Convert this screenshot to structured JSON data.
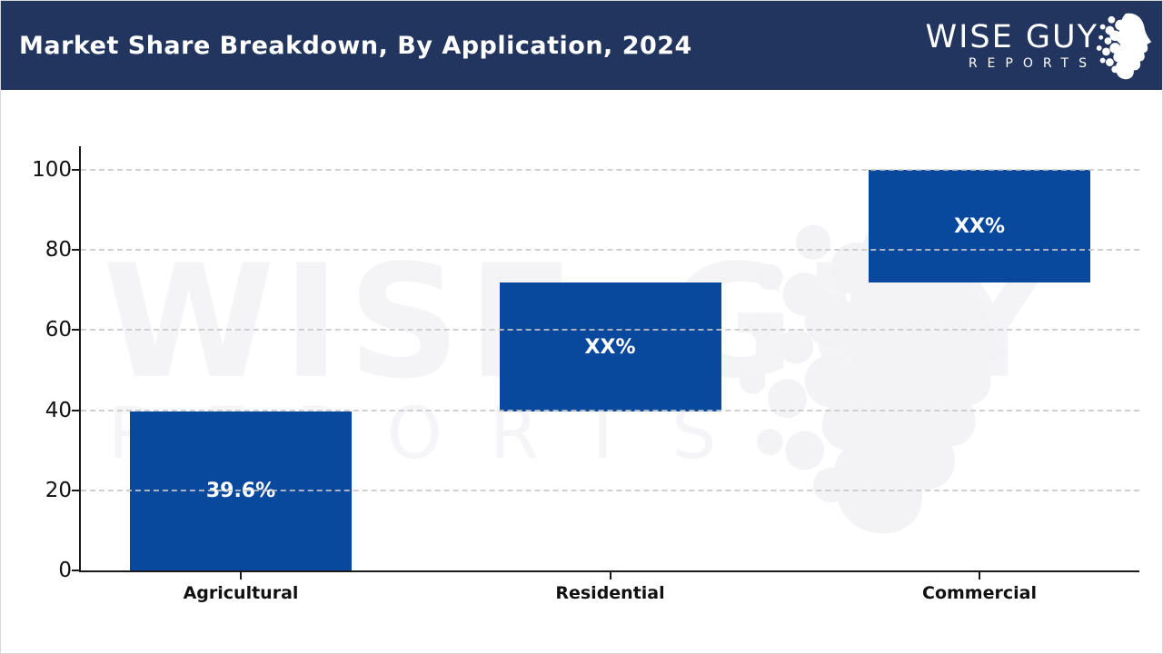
{
  "header": {
    "title": "Market Share Breakdown, By Application, 2024",
    "bg_color": "#21355E",
    "logo": {
      "line1": "WISE GUY",
      "line2": "REPORTS"
    }
  },
  "watermark": {
    "line1": "WISE GUY",
    "line2": "REPORTS"
  },
  "chart_data": {
    "type": "bar",
    "subtype": "waterfall",
    "title": "Market Share Breakdown, By Application, 2024",
    "categories": [
      "Agricultural",
      "Residential",
      "Commercial"
    ],
    "bars": [
      {
        "category": "Agricultural",
        "start": 0,
        "end": 39.6,
        "label": "39.6%"
      },
      {
        "category": "Residential",
        "start": 39.6,
        "end": 71.8,
        "label": "XX%"
      },
      {
        "category": "Commercial",
        "start": 71.8,
        "end": 100,
        "label": "XX%"
      }
    ],
    "xlabel": "",
    "ylabel": "",
    "ylim": [
      0,
      106
    ],
    "yticks": [
      0,
      20,
      40,
      60,
      80,
      100
    ],
    "grid": "horizontal-dashed",
    "legend": "none",
    "bar_color": "#08489D",
    "bar_label_color": "#FFFFFF",
    "axis_color": "#1A1A1A",
    "grid_color": "#C8C8C8",
    "tick_label_color": "#111111"
  }
}
